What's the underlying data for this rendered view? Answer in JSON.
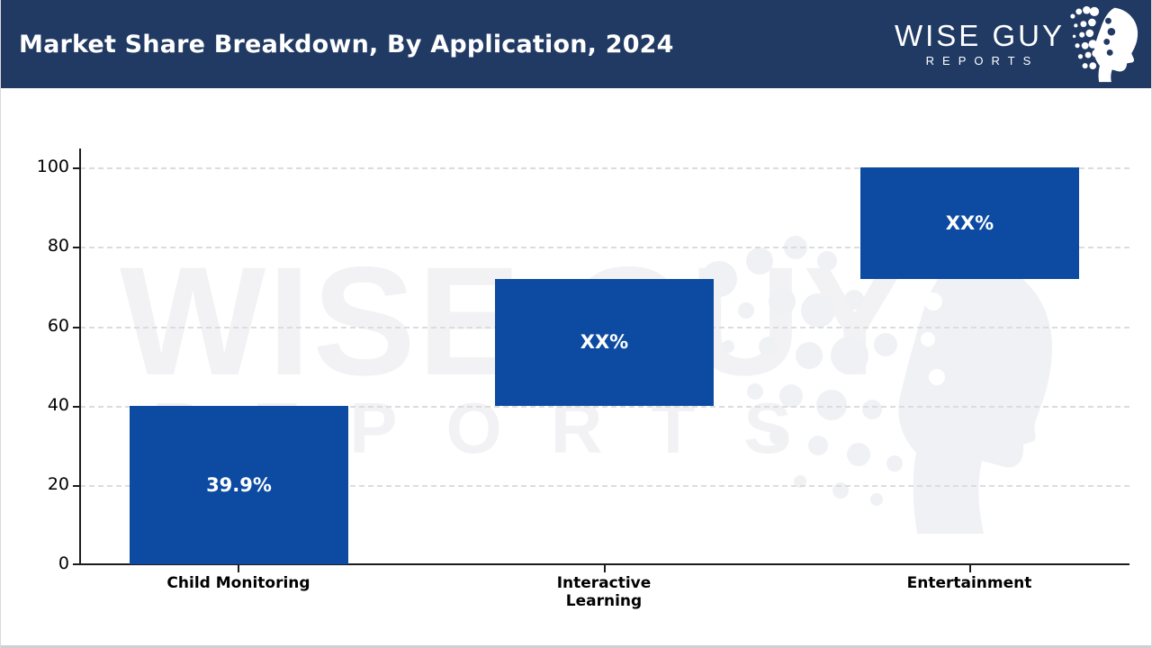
{
  "header": {
    "title": "Market Share Breakdown, By Application, 2024",
    "logo": {
      "line1": "WISE GUY",
      "line2": "REPORTS"
    }
  },
  "watermark": {
    "line1": "WISE GUY",
    "line2": "REPORTS"
  },
  "chart_data": {
    "type": "bar",
    "subtype": "floating-segment (waterfall-style) market share bars",
    "title": "Market Share Breakdown, By Application, 2024",
    "categories": [
      "Child Monitoring",
      "Interactive Learning",
      "Entertainment"
    ],
    "segments": [
      {
        "category": "Child Monitoring",
        "start": 0,
        "end": 39.9,
        "label": "39.9%"
      },
      {
        "category": "Interactive Learning",
        "start": 39.9,
        "end": 72,
        "label": "XX%"
      },
      {
        "category": "Entertainment",
        "start": 72,
        "end": 100,
        "label": "XX%"
      }
    ],
    "xlabel": "",
    "ylabel": "",
    "ylim": [
      0,
      100
    ],
    "yticks": [
      0,
      20,
      40,
      60,
      80,
      100
    ],
    "grid": "horizontal dashed gridlines at 20/40/60/80/100",
    "legend": "none",
    "bar_color": "#0c4ba1",
    "bar_label_color": "#ffffff",
    "header_color": "#213a63",
    "axis_color": "#1c1c1c",
    "gridline_color": "#dcdcdc"
  }
}
